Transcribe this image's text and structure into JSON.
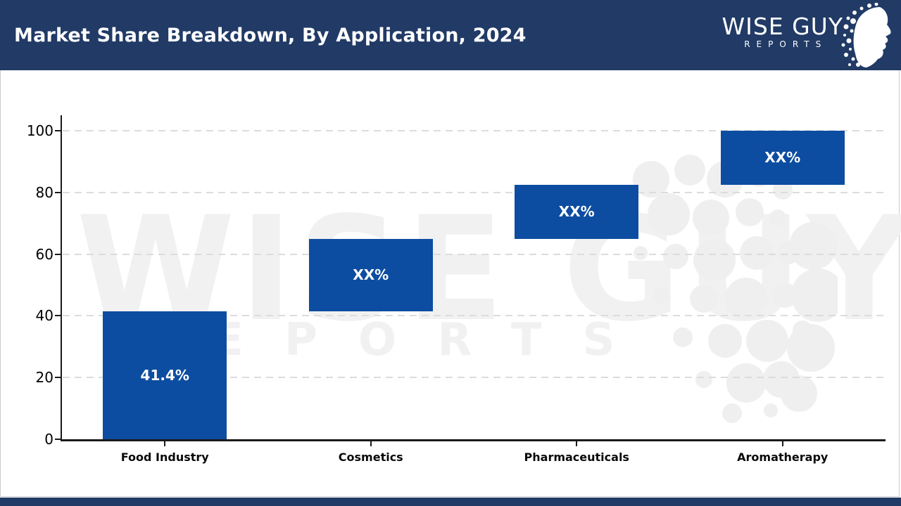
{
  "header": {
    "title": "Market Share Breakdown, By Application, 2024",
    "logo_line1": "WISE GUY",
    "logo_line2": "REPORTS",
    "bg_color": "#213a66"
  },
  "watermark": {
    "line1": "WISE GUY",
    "line2": "REPORTS"
  },
  "chart_data": {
    "type": "bar",
    "subtype": "waterfall",
    "title": "Market Share Breakdown, By Application, 2024",
    "categories": [
      "Food Industry",
      "Cosmetics",
      "Pharmaceuticals",
      "Aromatherapy"
    ],
    "bars": [
      {
        "category": "Food Industry",
        "start": 0,
        "end": 41.4,
        "label": "41.4%"
      },
      {
        "category": "Cosmetics",
        "start": 41.4,
        "end": 65,
        "label": "XX%"
      },
      {
        "category": "Pharmaceuticals",
        "start": 65,
        "end": 82.5,
        "label": "XX%"
      },
      {
        "category": "Aromatherapy",
        "start": 82.5,
        "end": 100,
        "label": "XX%"
      }
    ],
    "xlabel": "",
    "ylabel": "",
    "ylim": [
      0,
      105
    ],
    "yticks": [
      0,
      20,
      40,
      60,
      80,
      100
    ],
    "grid": "horizontal-dashed",
    "legend": "none",
    "bar_color": "#0d4da1",
    "bar_label_color": "#ffffff",
    "axis_color": "#1a1a1a",
    "gridline_color": "#dcdcdc"
  }
}
